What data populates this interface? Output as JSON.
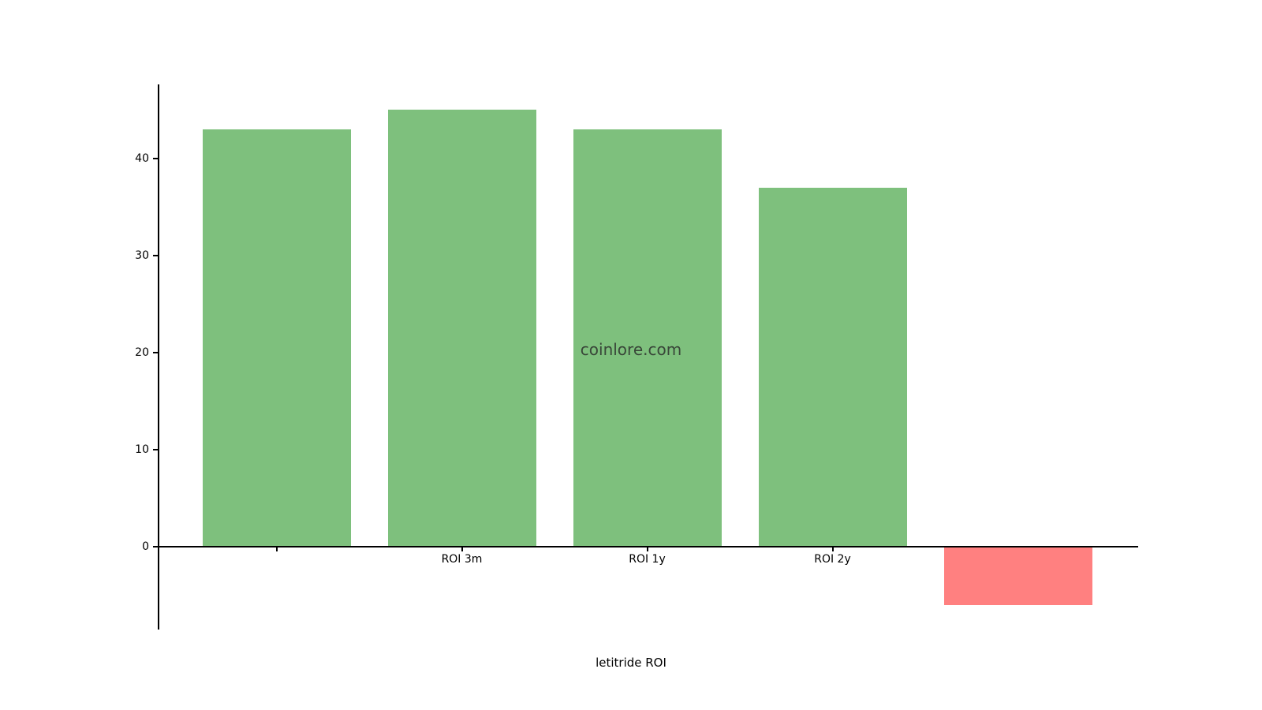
{
  "chart_data": {
    "type": "bar",
    "title": "letitride ROI",
    "watermark": "coinlore.com",
    "categories": [
      "",
      "ROI 3m",
      "ROI 1y",
      "ROI 2y",
      ""
    ],
    "values": [
      43,
      45,
      43,
      37,
      -6
    ],
    "y_ticks": [
      0,
      10,
      20,
      30,
      40
    ],
    "ylim": [
      -8.5,
      47.6
    ],
    "xlabel": "",
    "ylabel": "",
    "grid": false,
    "legend": null,
    "positive_color": "#7ec07d",
    "negative_color": "#ff8080",
    "axis_color": "#000000",
    "text_color": "#000000"
  }
}
